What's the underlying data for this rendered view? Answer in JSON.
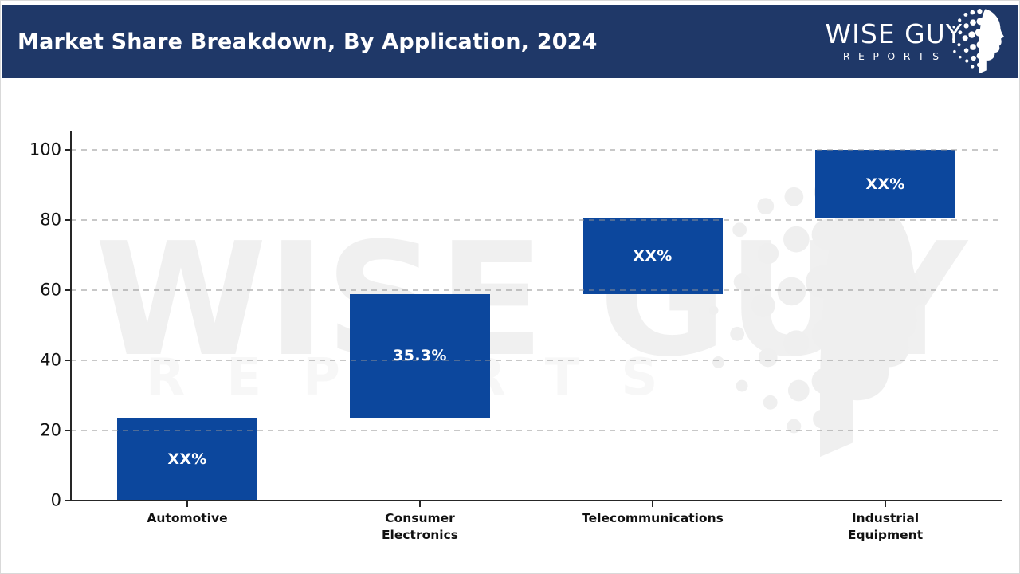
{
  "header": {
    "title": "Market Share Breakdown, By Application, 2024",
    "logo": {
      "name": "WISE GUY",
      "sub": "REPORTS"
    }
  },
  "watermark": {
    "name": "WISE GUY",
    "sub": "REPORTS"
  },
  "colors": {
    "header_bg": "#1f3868",
    "bar": "#0c479d",
    "axis": "#262626",
    "grid": "#c8c8c8",
    "watermark": "#f0f0f0"
  },
  "chart_data": {
    "type": "bar",
    "subtype": "waterfall",
    "title": "Market Share Breakdown, By Application, 2024",
    "categories": [
      "Automotive",
      "Consumer\nElectronics",
      "Telecommunications",
      "Industrial\nEquipment"
    ],
    "bars": [
      {
        "category": "Automotive",
        "start": 0,
        "end": 23.6,
        "value": 23.6,
        "value_label": "XX%"
      },
      {
        "category": "Consumer Electronics",
        "start": 23.6,
        "end": 58.9,
        "value": 35.3,
        "value_label": "35.3%"
      },
      {
        "category": "Telecommunications",
        "start": 58.9,
        "end": 80.5,
        "value": 21.6,
        "value_label": "XX%"
      },
      {
        "category": "Industrial Equipment",
        "start": 80.5,
        "end": 100,
        "value": 19.5,
        "value_label": "XX%"
      }
    ],
    "xlabel": "",
    "ylabel": "",
    "ylim": [
      0,
      105
    ],
    "yticks": [
      0,
      20,
      40,
      60,
      80,
      100
    ],
    "grid": "horizontal-dashed-over-bars",
    "legend": false
  }
}
